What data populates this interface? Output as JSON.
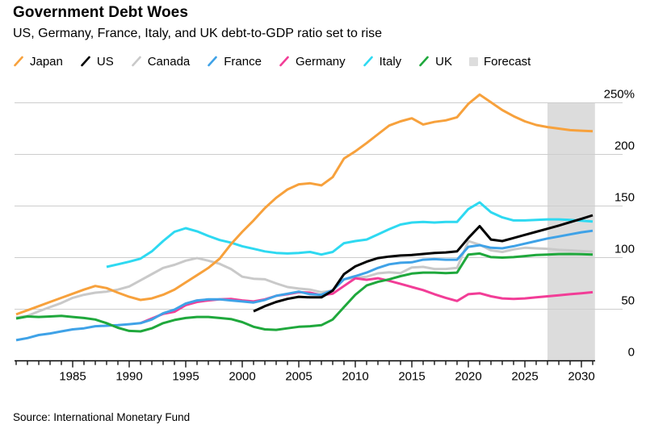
{
  "header": {
    "title": "Government Debt Woes",
    "subtitle": "US, Germany, France, Italy, and UK debt-to-GDP ratio set to rise"
  },
  "source": "Source: International Monetary Fund",
  "chart_data": {
    "type": "line",
    "title": "Government Debt Woes",
    "subtitle": "US, Germany, France, Italy, and UK debt-to-GDP ratio set to rise",
    "unit": "percent of GDP",
    "xlim": [
      1980,
      2031.5
    ],
    "ylim": [
      0,
      260
    ],
    "grid": true,
    "grid_color": "#CDCDCD",
    "axis_color": "#000000",
    "x_ticks": {
      "labeled_years": [
        1985,
        1990,
        1995,
        2000,
        2005,
        2010,
        2015,
        2020,
        2025,
        2030
      ],
      "minor_tick_every": 1,
      "first_year": 1980,
      "last_year": 2031
    },
    "y_ticks": {
      "values": [
        250,
        200,
        150,
        100,
        50,
        0
      ],
      "labels": [
        "250%",
        "200",
        "150",
        "100",
        "50",
        "0"
      ],
      "position": "right"
    },
    "forecast": {
      "label": "Forecast",
      "start": 2027,
      "end": 2031.2,
      "band_color": "#DCDCDC",
      "legend_swatch_color": "#DDDDDD"
    },
    "z_order": [
      "Canada",
      "Germany",
      "France",
      "Italy",
      "UK",
      "US",
      "Japan"
    ],
    "series": [
      {
        "name": "Japan",
        "color": "#F7A13C",
        "start_year": 1980,
        "values": [
          45,
          49,
          53,
          57,
          61,
          65,
          69,
          72.5,
          70.5,
          66,
          62,
          59,
          60.5,
          64,
          69,
          76,
          83,
          90,
          99,
          113,
          125,
          136,
          148,
          158,
          166,
          171,
          172,
          170,
          178,
          196,
          203,
          211,
          219.5,
          228,
          232,
          235,
          229,
          231.5,
          233,
          236,
          249,
          258,
          250.5,
          243,
          237,
          232,
          228.5,
          226.5,
          225,
          223.5,
          223,
          222.5
        ]
      },
      {
        "name": "US",
        "color": "#000000",
        "start_year": 2001,
        "values": [
          48,
          53,
          57,
          60,
          62,
          61.5,
          61.5,
          68,
          84,
          91.5,
          96,
          99.5,
          101,
          102,
          102.5,
          103.5,
          104.5,
          105,
          106,
          119,
          130.5,
          117.5,
          116,
          119,
          122,
          125,
          128,
          131,
          134.3,
          137.6,
          141
        ]
      },
      {
        "name": "Canada",
        "color": "#C9C9C9",
        "start_year": 1980,
        "values": [
          42,
          43.5,
          48,
          52,
          56,
          61,
          64,
          66,
          67,
          69,
          72,
          78,
          84,
          90,
          93,
          97,
          99.5,
          97,
          94,
          89,
          81.5,
          79.5,
          79,
          75,
          71.5,
          70,
          69,
          66.5,
          68,
          79,
          80.5,
          81.5,
          84.8,
          85.8,
          85,
          90.5,
          91,
          89,
          89,
          90,
          116,
          112.5,
          107,
          105.5,
          108,
          109.5,
          109,
          108.5,
          107.5,
          107,
          106.3,
          105.8
        ]
      },
      {
        "name": "France",
        "color": "#3FA2E7",
        "start_year": 1980,
        "values": [
          20,
          22,
          25,
          26.5,
          28.5,
          30.5,
          31.5,
          33.5,
          34,
          34.5,
          35.5,
          36.5,
          40,
          46,
          49.5,
          55.5,
          58.5,
          59.5,
          59.5,
          58.5,
          57.5,
          56.5,
          59,
          63,
          65,
          67,
          64.5,
          64,
          68.5,
          79,
          82,
          85.5,
          90,
          93.5,
          95,
          95.5,
          98,
          98.5,
          98,
          98,
          110.5,
          112,
          109.5,
          109,
          111,
          113.5,
          116,
          118.5,
          120.5,
          122.5,
          124.5,
          126
        ]
      },
      {
        "name": "Germany",
        "color": "#F23D97",
        "start_year": 1991,
        "values": [
          36.5,
          41,
          45.5,
          47.5,
          54,
          57,
          58.5,
          59.5,
          60,
          58.5,
          57.5,
          59.5,
          63,
          64.5,
          66.5,
          66,
          63.5,
          65,
          72.5,
          80,
          78.5,
          80,
          77.5,
          74.5,
          71.5,
          68.5,
          64.5,
          61,
          58,
          64.5,
          65.5,
          62.5,
          60.5,
          60,
          60.5,
          61.5,
          62.5,
          63.5,
          64.5,
          65.5,
          66.5
        ]
      },
      {
        "name": "Italy",
        "color": "#2ED9F1",
        "start_year": 1988,
        "values": [
          91,
          93.5,
          96,
          99,
          106,
          116,
          125,
          128.5,
          125.5,
          121,
          117,
          114.5,
          111,
          108.5,
          106,
          104.5,
          104,
          104.5,
          105.5,
          103,
          105.5,
          114,
          116,
          117.5,
          122.5,
          127.5,
          132,
          134,
          134.5,
          134,
          134.5,
          134.5,
          147,
          153.5,
          144,
          139,
          136,
          136,
          136.5,
          137,
          137,
          136.5,
          135.8,
          135
        ]
      },
      {
        "name": "UK",
        "color": "#1FA83C",
        "start_year": 1980,
        "values": [
          41,
          43,
          42.5,
          43,
          43.5,
          42.5,
          41.5,
          40,
          36.5,
          32,
          29,
          28.5,
          31.5,
          36.5,
          39.5,
          41.5,
          42.5,
          42.5,
          41.5,
          40.5,
          37.5,
          33,
          30.5,
          30,
          31.5,
          33,
          33.5,
          34.5,
          40,
          52,
          64,
          73,
          76.5,
          79,
          82,
          84.5,
          85.5,
          85.5,
          85,
          85.5,
          103,
          104,
          100.5,
          100,
          100.5,
          101.5,
          102.5,
          103,
          103.4,
          103.5,
          103.3,
          103
        ]
      }
    ]
  }
}
